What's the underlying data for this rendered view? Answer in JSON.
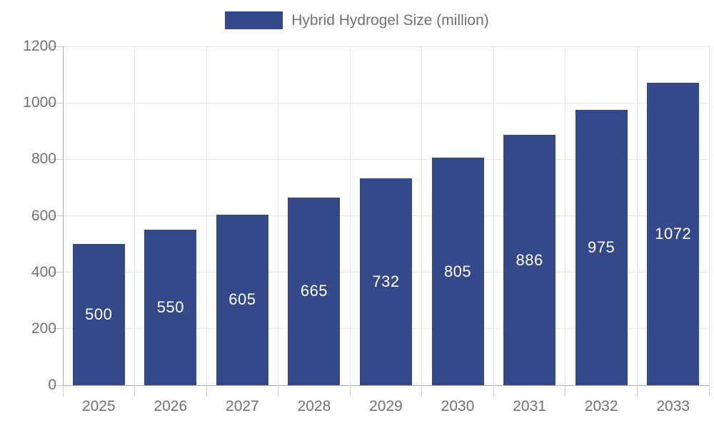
{
  "legend": {
    "label": "Hybrid Hydrogel Size (million)"
  },
  "chart_data": {
    "type": "bar",
    "title": "Hybrid Hydrogel Size (million)",
    "categories": [
      "2025",
      "2026",
      "2027",
      "2028",
      "2029",
      "2030",
      "2031",
      "2032",
      "2033"
    ],
    "values": [
      500,
      550,
      605,
      665,
      732,
      805,
      886,
      975,
      1072
    ],
    "xlabel": "",
    "ylabel": "",
    "ylim": [
      0,
      1200
    ],
    "yticks": [
      0,
      200,
      400,
      600,
      800,
      1000,
      1200
    ],
    "grid": true,
    "legend_position": "top-center",
    "bar_labels_inside": true,
    "colors": {
      "bar": "#35498a",
      "bar_label": "#ffffff",
      "axis_text": "#717171",
      "legend_text": "#717171",
      "axis_line": "#aaaaaa",
      "gridline": "#e6e6e6",
      "tick": "#cccccc",
      "background": "#ffffff"
    }
  }
}
